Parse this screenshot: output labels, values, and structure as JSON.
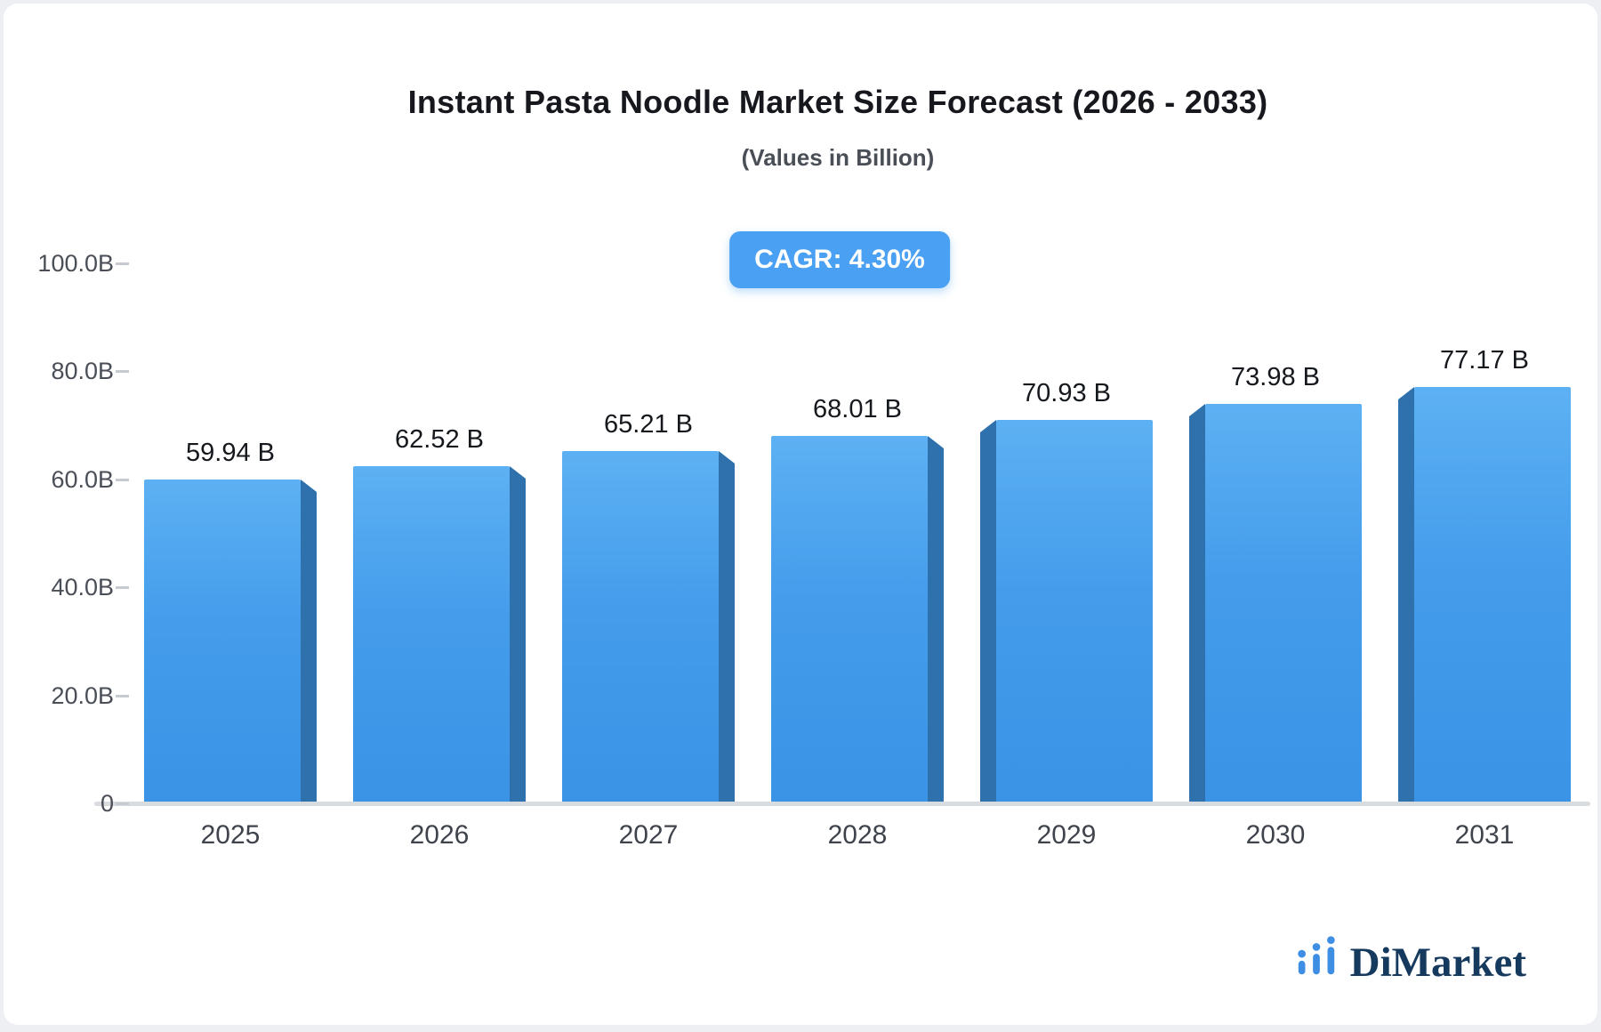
{
  "title": "Instant Pasta Noodle Market Size Forecast (2026 - 2033)",
  "subtitle": "(Values in Billion)",
  "cagr_badge": "CAGR: 4.30%",
  "logo_text": "DiMarket",
  "colors": {
    "bar_top": "#5db1f3",
    "bar_bottom": "#3b93e6",
    "bar_side": "#2e71ad",
    "badge_bg": "#4aa0f2",
    "logo_navy": "#16395e"
  },
  "chart_data": {
    "type": "bar",
    "title": "Instant Pasta Noodle Market Size Forecast (2026 - 2033)",
    "subtitle": "(Values in Billion)",
    "cagr": "4.30%",
    "categories": [
      "2025",
      "2026",
      "2027",
      "2028",
      "2029",
      "2030",
      "2031"
    ],
    "values": [
      59.94,
      62.52,
      65.21,
      68.01,
      70.93,
      73.98,
      77.17
    ],
    "value_labels": [
      "59.94 B",
      "62.52 B",
      "65.21 B",
      "68.01 B",
      "70.93 B",
      "73.98 B",
      "77.17 B"
    ],
    "xlabel": "",
    "ylabel": "",
    "ylim": [
      0,
      100
    ],
    "yticks": [
      "100.0B",
      "80.0B",
      "60.0B",
      "40.0B",
      "20.0B",
      "0"
    ],
    "grid": false,
    "legend_position": "none"
  }
}
